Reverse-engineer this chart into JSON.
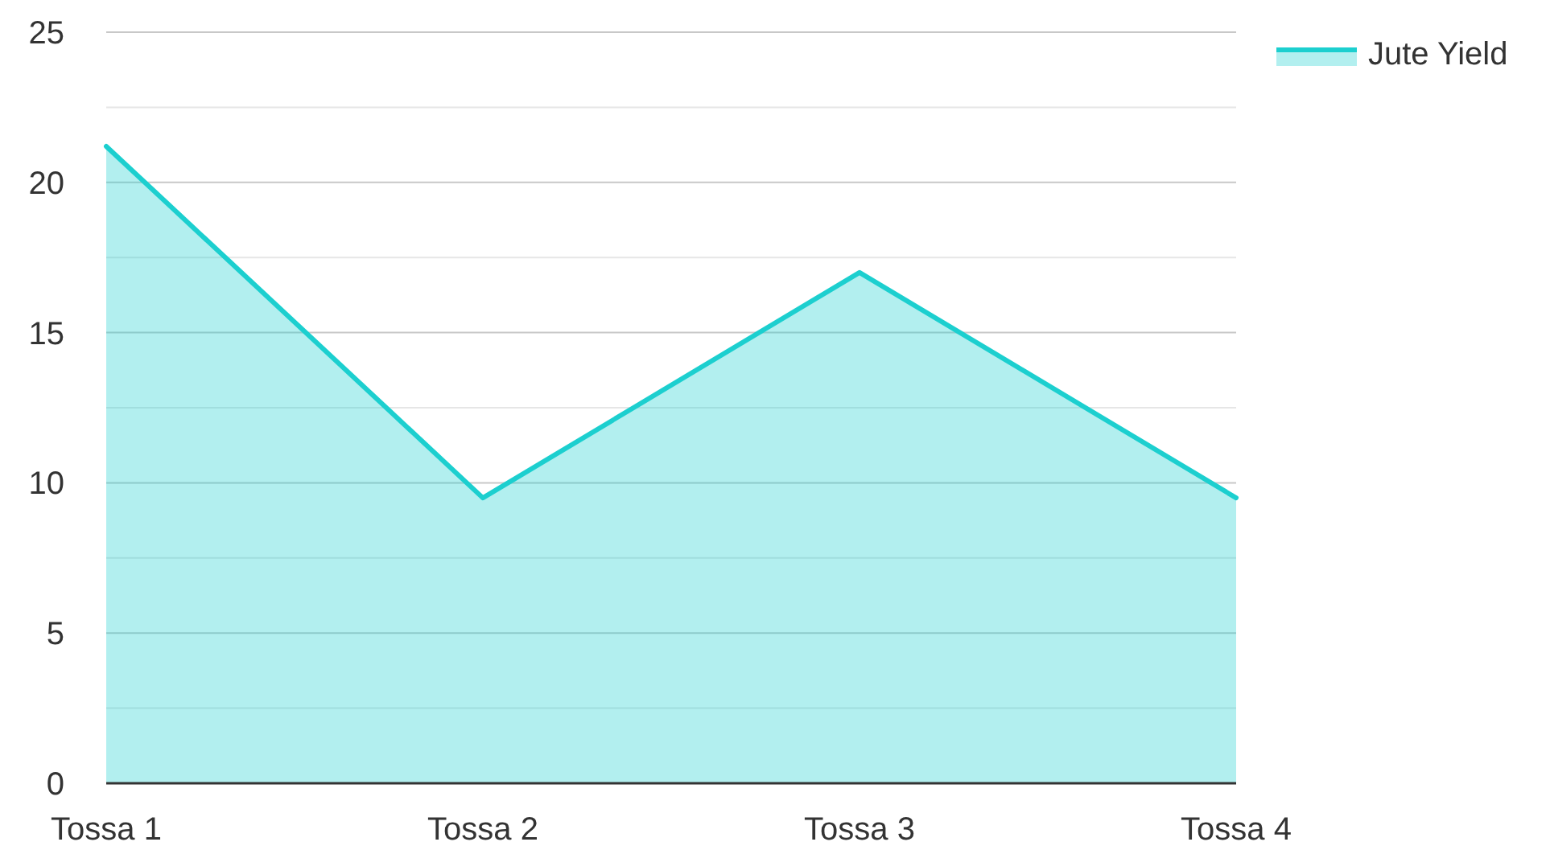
{
  "chart_data": {
    "type": "area",
    "categories": [
      "Tossa 1",
      "Tossa 2",
      "Tossa 3",
      "Tossa 4"
    ],
    "series": [
      {
        "name": "Jute Yield",
        "color": "#1ccfcf",
        "values": [
          21.2,
          9.5,
          17,
          9.5
        ]
      }
    ],
    "ylim": [
      0,
      25
    ],
    "yticks": [
      0,
      {
        "value": 2.5,
        "label": null
      },
      5,
      {
        "value": 7.5,
        "label": null
      },
      10,
      {
        "value": 12.5,
        "label": null
      },
      15,
      {
        "value": 17.5,
        "label": null
      },
      20,
      {
        "value": 22.5,
        "label": null
      },
      25
    ],
    "grid": "y",
    "legend": "top right"
  }
}
